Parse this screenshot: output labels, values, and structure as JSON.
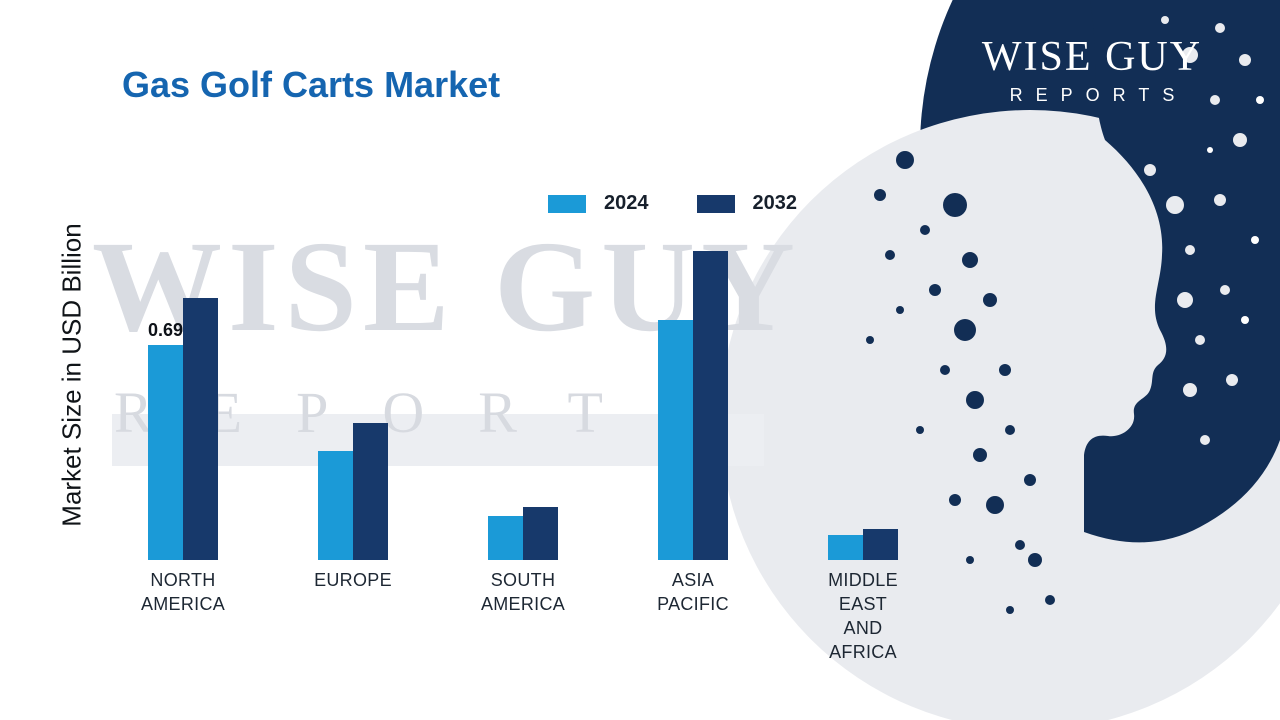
{
  "page": {
    "title": "Gas Golf Carts Market"
  },
  "branding": {
    "logo_line1": "WISE GUY",
    "logo_line2": "REPORTS",
    "watermark_line1": "WISE GUY",
    "watermark_line2": "REPORTS"
  },
  "colors": {
    "title_blue": "#1565b0",
    "series_2024": "#1b9ad7",
    "series_2032": "#17396b",
    "navy_background": "#122e55",
    "light_gray_circle": "#e9ebef",
    "watermark_gray": "#d9dce2"
  },
  "chart_data": {
    "type": "bar",
    "title": "Gas Golf Carts Market",
    "ylabel": "Market Size in USD Billion",
    "xlabel": "",
    "categories": [
      "NORTH AMERICA",
      "EUROPE",
      "SOUTH AMERICA",
      "ASIA PACIFIC",
      "MIDDLE EAST AND AFRICA"
    ],
    "category_lines": [
      [
        "NORTH",
        "AMERICA"
      ],
      [
        "EUROPE"
      ],
      [
        "SOUTH",
        "AMERICA"
      ],
      [
        "ASIA",
        "PACIFIC"
      ],
      [
        "MIDDLE",
        "EAST",
        "AND",
        "AFRICA"
      ]
    ],
    "series": [
      {
        "name": "2024",
        "color": "#1b9ad7",
        "values": [
          0.69,
          0.35,
          0.14,
          0.77,
          0.08
        ]
      },
      {
        "name": "2032",
        "color": "#17396b",
        "values": [
          0.84,
          0.44,
          0.17,
          0.99,
          0.1
        ]
      }
    ],
    "annotations": [
      {
        "category_index": 0,
        "series_index": 0,
        "text": "0.69"
      }
    ],
    "ylim": [
      0,
      1.1
    ],
    "grid": false,
    "legend_position": "top"
  }
}
